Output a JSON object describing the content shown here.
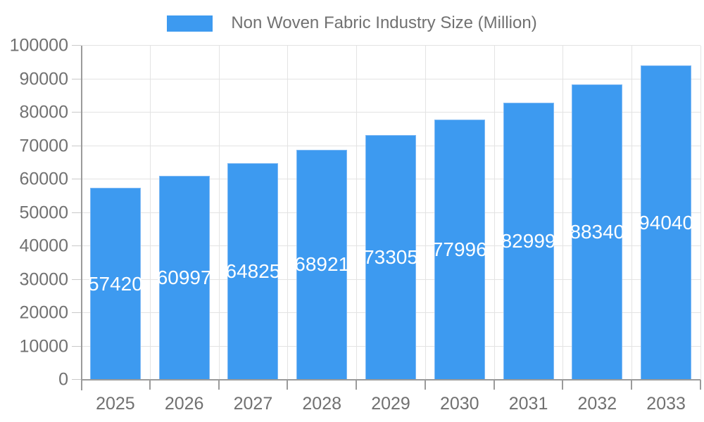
{
  "legend": {
    "label": "Non Woven Fabric Industry Size (Million)"
  },
  "chart_data": {
    "type": "bar",
    "title": "",
    "xlabel": "",
    "ylabel": "",
    "categories": [
      "2025",
      "2026",
      "2027",
      "2028",
      "2029",
      "2030",
      "2031",
      "2032",
      "2033"
    ],
    "series": [
      {
        "name": "Non Woven Fabric Industry Size (Million)",
        "values": [
          57420,
          60997,
          64825,
          68921,
          73305,
          77996,
          82999,
          88340,
          94040
        ],
        "color": "#3D9AF0"
      }
    ],
    "bar_value_labels": [
      57420,
      60997,
      64825,
      68921,
      73305,
      77996,
      82999,
      88340,
      94040
    ],
    "ylim": [
      0,
      100000
    ],
    "ytick_step": 10000,
    "ytick_labels": [
      "0",
      "10000",
      "20000",
      "30000",
      "40000",
      "50000",
      "60000",
      "70000",
      "80000",
      "90000",
      "100000"
    ],
    "grid": true,
    "legend_position": "top",
    "colors": {
      "bar_fill": "#3D9AF0",
      "bar_border": "#7FB9F4",
      "gridline": "#E3E3E3",
      "axis_line": "#9B9B9B",
      "tick": "#C9C9C9",
      "axis_text": "#717171",
      "bar_label_text": "#FFFFFF"
    }
  }
}
